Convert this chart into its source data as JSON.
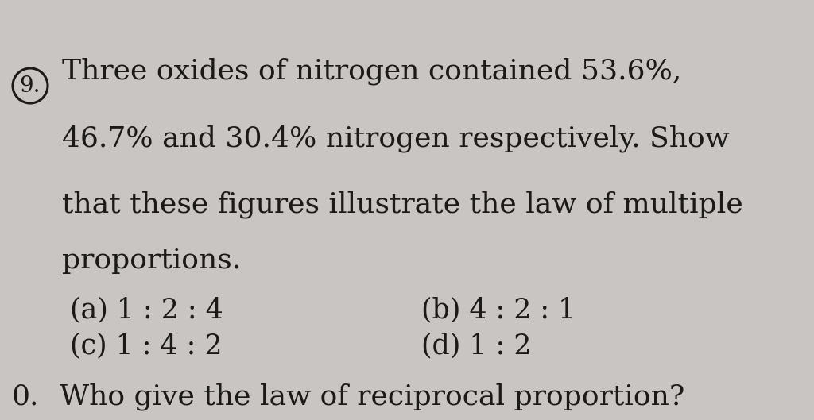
{
  "background_color": "#c8c5c2",
  "question_number": "9.",
  "question_text_line1": "Three oxides of nitrogen contained 53.6%,",
  "question_text_line2": "46.7% and 30.4% nitrogen respectively. Show",
  "question_text_line3": "that these figures illustrate the law of multiple",
  "question_text_line4": "proportions.",
  "option_a": "(a) 1 : 2 : 4",
  "option_b": "(b) 4 : 2 : 1",
  "option_c": "(c) 1 : 4 : 2",
  "option_d": "(d) 1 : 2",
  "next_question_number": "0.",
  "next_question_text": "Who give the law of reciprocal proportion?",
  "text_color": "#1c1a18",
  "font_size_main": 26,
  "font_size_options": 25,
  "font_size_next": 26,
  "circle_color": "#1c1a18",
  "fig_width": 10.24,
  "fig_height": 5.29,
  "dpi": 100
}
